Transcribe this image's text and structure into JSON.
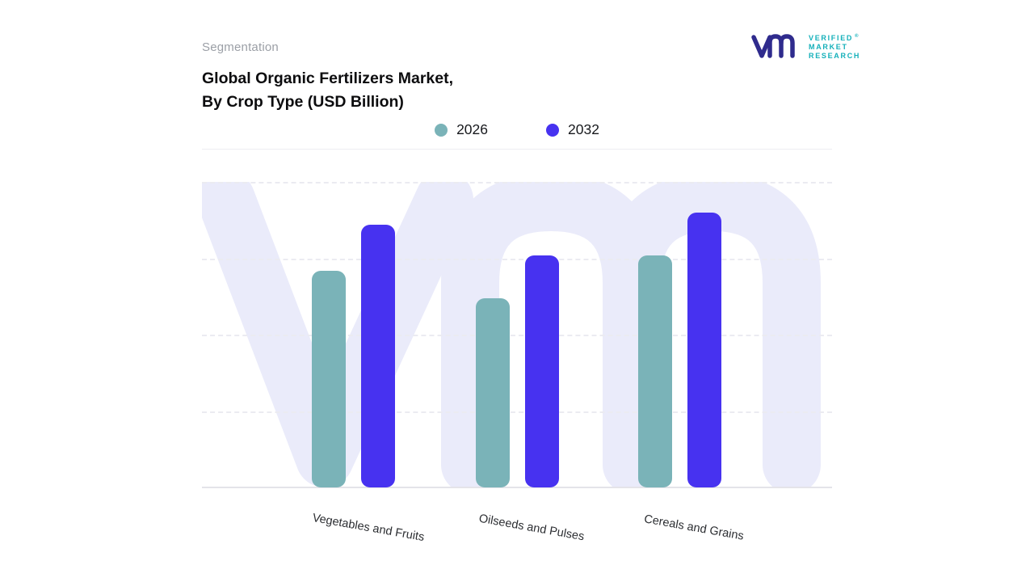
{
  "header": {
    "eyebrow": "Segmentation",
    "title_line1": "Global Organic Fertilizers Market,",
    "title_line2": "By Crop Type (USD Billion)"
  },
  "logo": {
    "lines": [
      "VERIFIED",
      "MARKET",
      "RESEARCH"
    ],
    "registered_mark": "®",
    "monogram_color": "#2f2b8d",
    "text_color": "#14b0ba"
  },
  "chart_data": {
    "type": "bar",
    "title": "Global Organic Fertilizers Market, By Crop Type (USD Billion)",
    "categories": [
      "Vegetables and Fruits",
      "Oilseeds and Pulses",
      "Cereals and Grains"
    ],
    "series": [
      {
        "name": "2026",
        "color": "#7ab3b8",
        "values": [
          71,
          62,
          76
        ]
      },
      {
        "name": "2032",
        "color": "#4732f0",
        "values": [
          86,
          76,
          90
        ]
      }
    ],
    "xlabel": "",
    "ylabel": "",
    "ylim": [
      0,
      100
    ],
    "y_axis_labels_visible": false,
    "values_are_estimates_from_unlabeled_axis": true,
    "grid": "horizontal-dashed",
    "legend_position": "top",
    "watermark_color": "#eaebfa",
    "background_color": "#ffffff"
  }
}
